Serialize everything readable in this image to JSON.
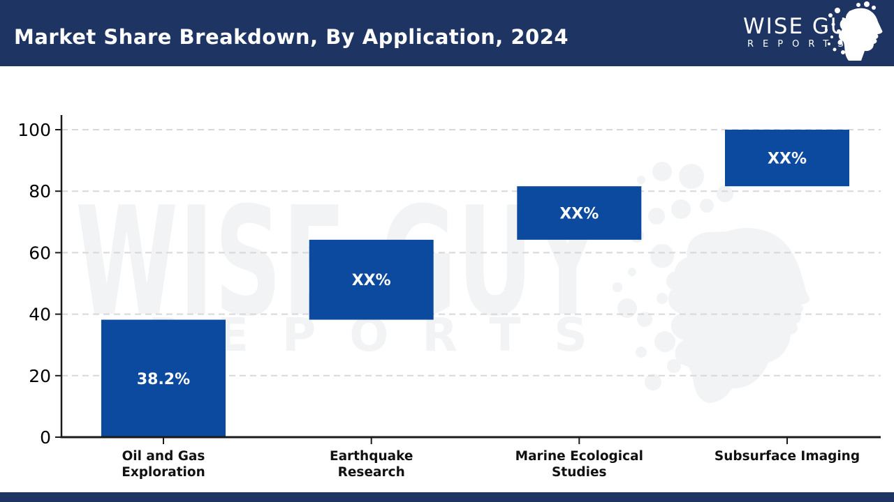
{
  "header": {
    "logo": {
      "line1": "WISE GUY",
      "line2": "REPORTS"
    }
  },
  "watermark": {
    "line1": "WISE GUY",
    "line2": "REPORTS"
  },
  "colors": {
    "header_navy": "#1e3563",
    "bar_blue": "#0b4a9e",
    "bar_label_white": "#ffffff",
    "watermark_gray": "#f2f3f5",
    "gridline_gray": "#d8d8d8",
    "axis_black": "#1a1a1a"
  },
  "chart_data": {
    "type": "bar",
    "subtype": "floating-waterfall",
    "title": "Market Share Breakdown, By Application, 2024",
    "categories": [
      [
        "Oil and Gas",
        "Exploration"
      ],
      [
        "Earthquake",
        "Research"
      ],
      [
        "Marine Ecological",
        "Studies"
      ],
      [
        "Subsurface Imaging"
      ]
    ],
    "bars": [
      {
        "start": 0,
        "end": 38.2,
        "label": "38.2%"
      },
      {
        "start": 38.2,
        "end": 64.2,
        "label": "XX%"
      },
      {
        "start": 64.2,
        "end": 81.6,
        "label": "XX%"
      },
      {
        "start": 81.6,
        "end": 100,
        "label": "XX%"
      }
    ],
    "xlabel": "",
    "ylabel": "",
    "ylim": [
      0,
      100
    ],
    "yticks": [
      0,
      20,
      40,
      60,
      80,
      100
    ],
    "grid": "horizontal-dashed",
    "legend": "none",
    "bar_color": "#0b4a9e",
    "bar_label_color": "#ffffff"
  }
}
